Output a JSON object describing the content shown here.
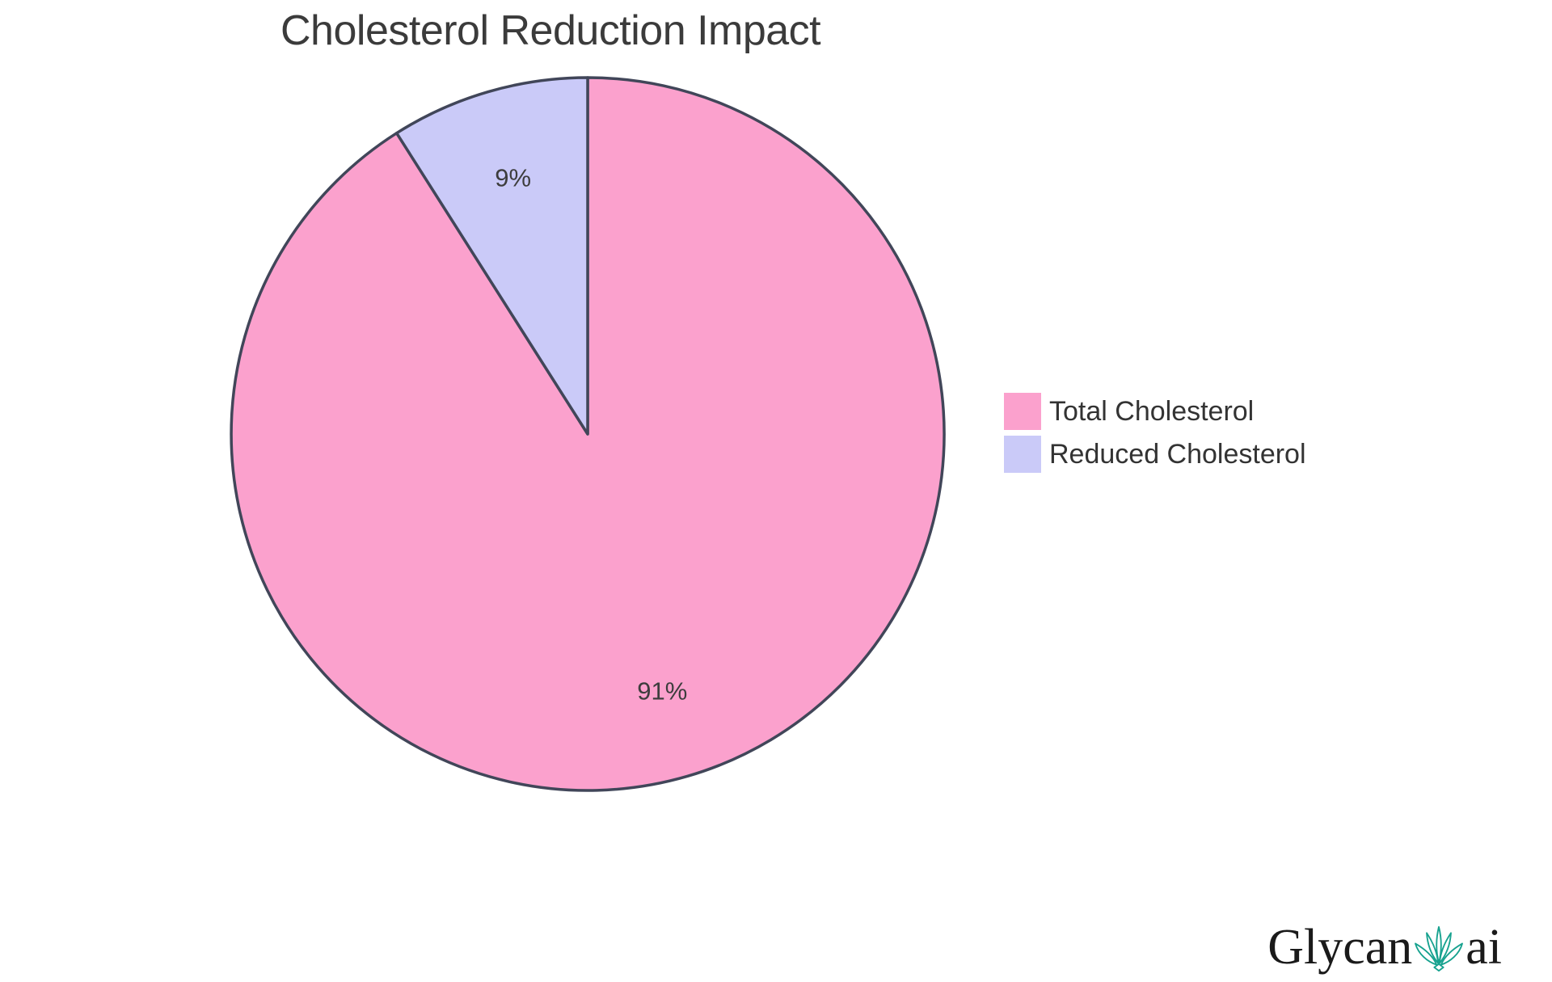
{
  "background_color": "#FFFFFF",
  "chart_data": {
    "type": "pie",
    "title": "Cholesterol Reduction Impact",
    "slices": [
      {
        "label": "Total Cholesterol",
        "value": 91,
        "percent_label": "91%",
        "color": "#FBA1CD"
      },
      {
        "label": "Reduced Cholesterol",
        "value": 9,
        "percent_label": "9%",
        "color": "#CACAF8"
      }
    ],
    "start_angle": "12-oclock",
    "direction": "clockwise",
    "outline_color": "#414659",
    "label_color": "#3D3D3D",
    "legend_position": "right",
    "legend_text_color": "#333333"
  },
  "logo": {
    "brand_left": "Glycan",
    "brand_right": "ai",
    "icon": "agave-plant-icon",
    "icon_color": "#17A28F",
    "text_color": "#1A1A1A"
  }
}
